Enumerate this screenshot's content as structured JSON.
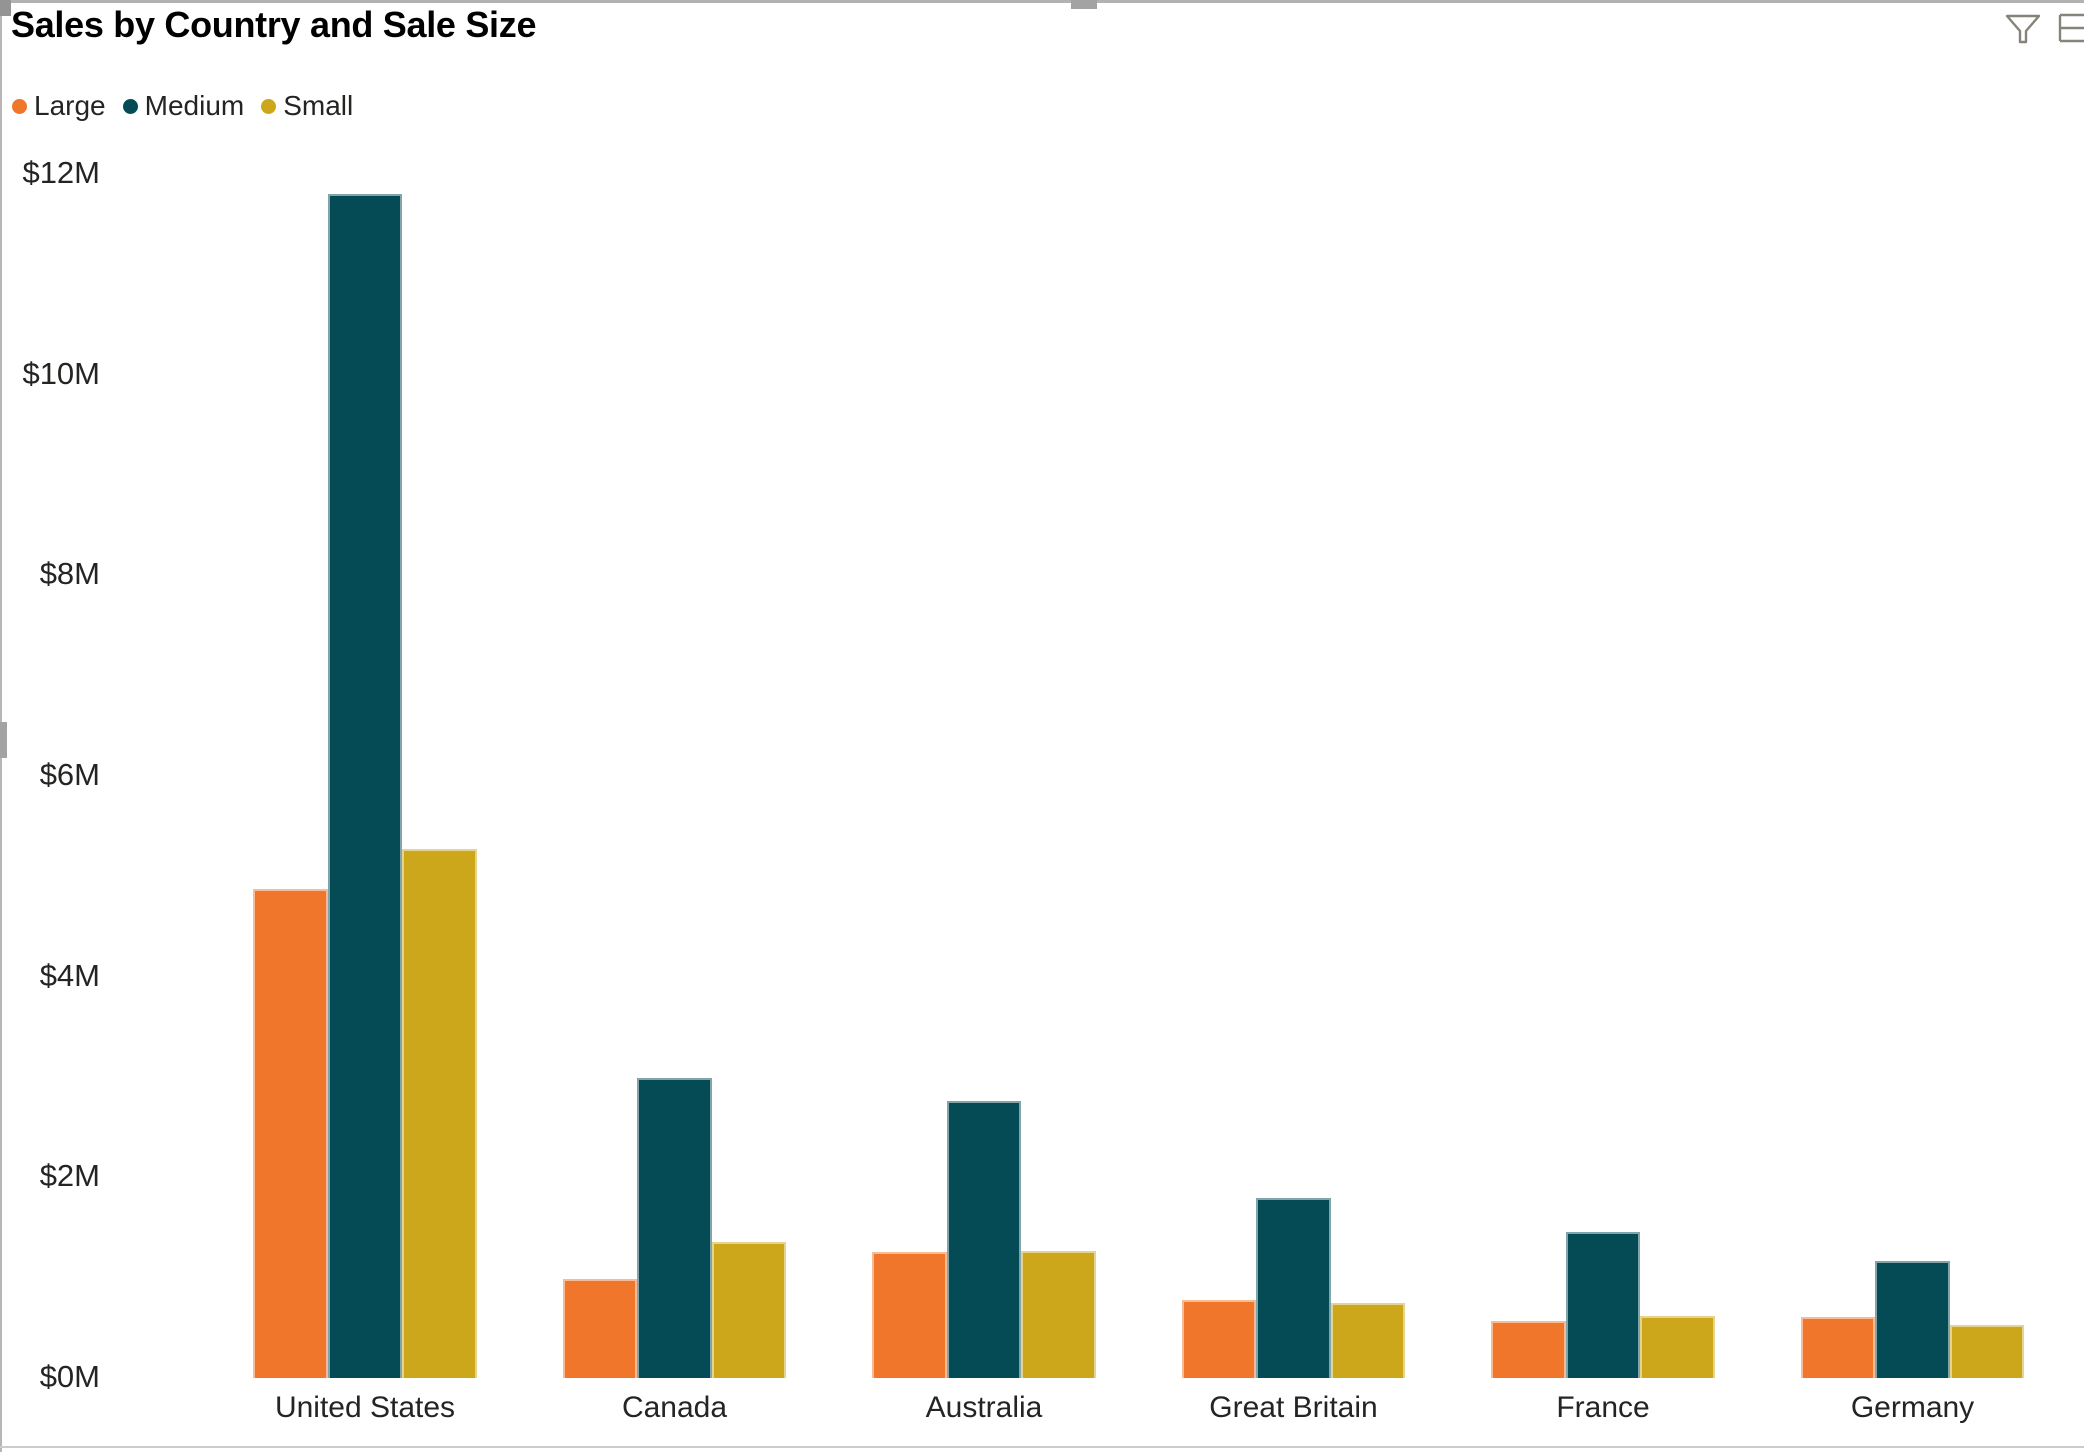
{
  "visual": {
    "title": "Sales by Country and Sale Size"
  },
  "toolbar": {
    "filter_icon": "filter-funnel",
    "partial_icon": "clipped-visual-options"
  },
  "legend": {
    "position": "top",
    "items": [
      {
        "label": "Large",
        "color": "#F0762B"
      },
      {
        "label": "Medium",
        "color": "#044B56"
      },
      {
        "label": "Small",
        "color": "#CCA61B"
      }
    ]
  },
  "chart_data": {
    "type": "bar",
    "title": "Sales by Country and Sale Size",
    "categories": [
      "United States",
      "Canada",
      "Australia",
      "Great Britain",
      "France",
      "Germany"
    ],
    "series": [
      {
        "name": "Large",
        "color": "#F0762B",
        "values": [
          4.87,
          0.99,
          1.26,
          0.78,
          0.57,
          0.61
        ]
      },
      {
        "name": "Medium",
        "color": "#044B56",
        "values": [
          11.8,
          2.99,
          2.76,
          1.79,
          1.46,
          1.17
        ]
      },
      {
        "name": "Small",
        "color": "#CCA61B",
        "values": [
          5.27,
          1.36,
          1.27,
          0.75,
          0.62,
          0.53
        ]
      }
    ],
    "xlabel": "",
    "ylabel": "",
    "y_axis": {
      "prefix": "$",
      "unit": "M",
      "tick_values": [
        0,
        2,
        4,
        6,
        8,
        10,
        12
      ],
      "tick_labels": [
        "$0M",
        "$2M",
        "$4M",
        "$6M",
        "$8M",
        "$10M",
        "$12M"
      ],
      "ylim": [
        0,
        12
      ]
    },
    "grid": false,
    "legend_position": "top"
  },
  "chrome": {
    "handles": [
      "top-left-corner",
      "top-center",
      "left-middle"
    ]
  }
}
